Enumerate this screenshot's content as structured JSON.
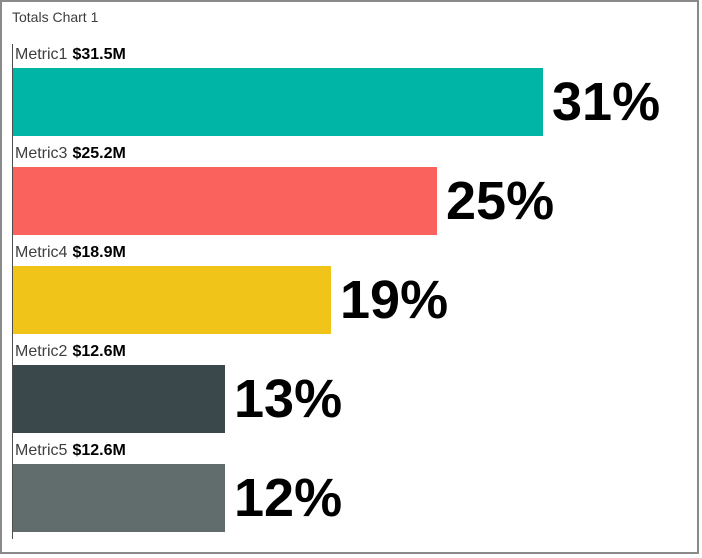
{
  "chart_data": {
    "type": "bar",
    "orientation": "horizontal",
    "title": "Totals Chart 1",
    "grid": false,
    "legend": false,
    "value_unit": "$M",
    "x_axis_min": 0,
    "x_axis_max": 31.5,
    "axis_line_color": "#4d4d4d",
    "bars": [
      {
        "category": "Metric1",
        "value_text": "$31.5M",
        "value": 31.5,
        "percent": 31,
        "percent_text": "31%",
        "color": "#00b5a5"
      },
      {
        "category": "Metric3",
        "value_text": "$25.2M",
        "value": 25.2,
        "percent": 25,
        "percent_text": "25%",
        "color": "#fa625e"
      },
      {
        "category": "Metric4",
        "value_text": "$18.9M",
        "value": 18.9,
        "percent": 19,
        "percent_text": "19%",
        "color": "#f0c419"
      },
      {
        "category": "Metric2",
        "value_text": "$12.6M",
        "value": 12.6,
        "percent": 13,
        "percent_text": "13%",
        "color": "#3a474b"
      },
      {
        "category": "Metric5",
        "value_text": "$12.6M",
        "value": 12.6,
        "percent": 12,
        "percent_text": "12%",
        "color": "#616c6d"
      }
    ]
  },
  "frame": {
    "border_color": "#8a8a8a",
    "background_color": "#ffffff"
  }
}
